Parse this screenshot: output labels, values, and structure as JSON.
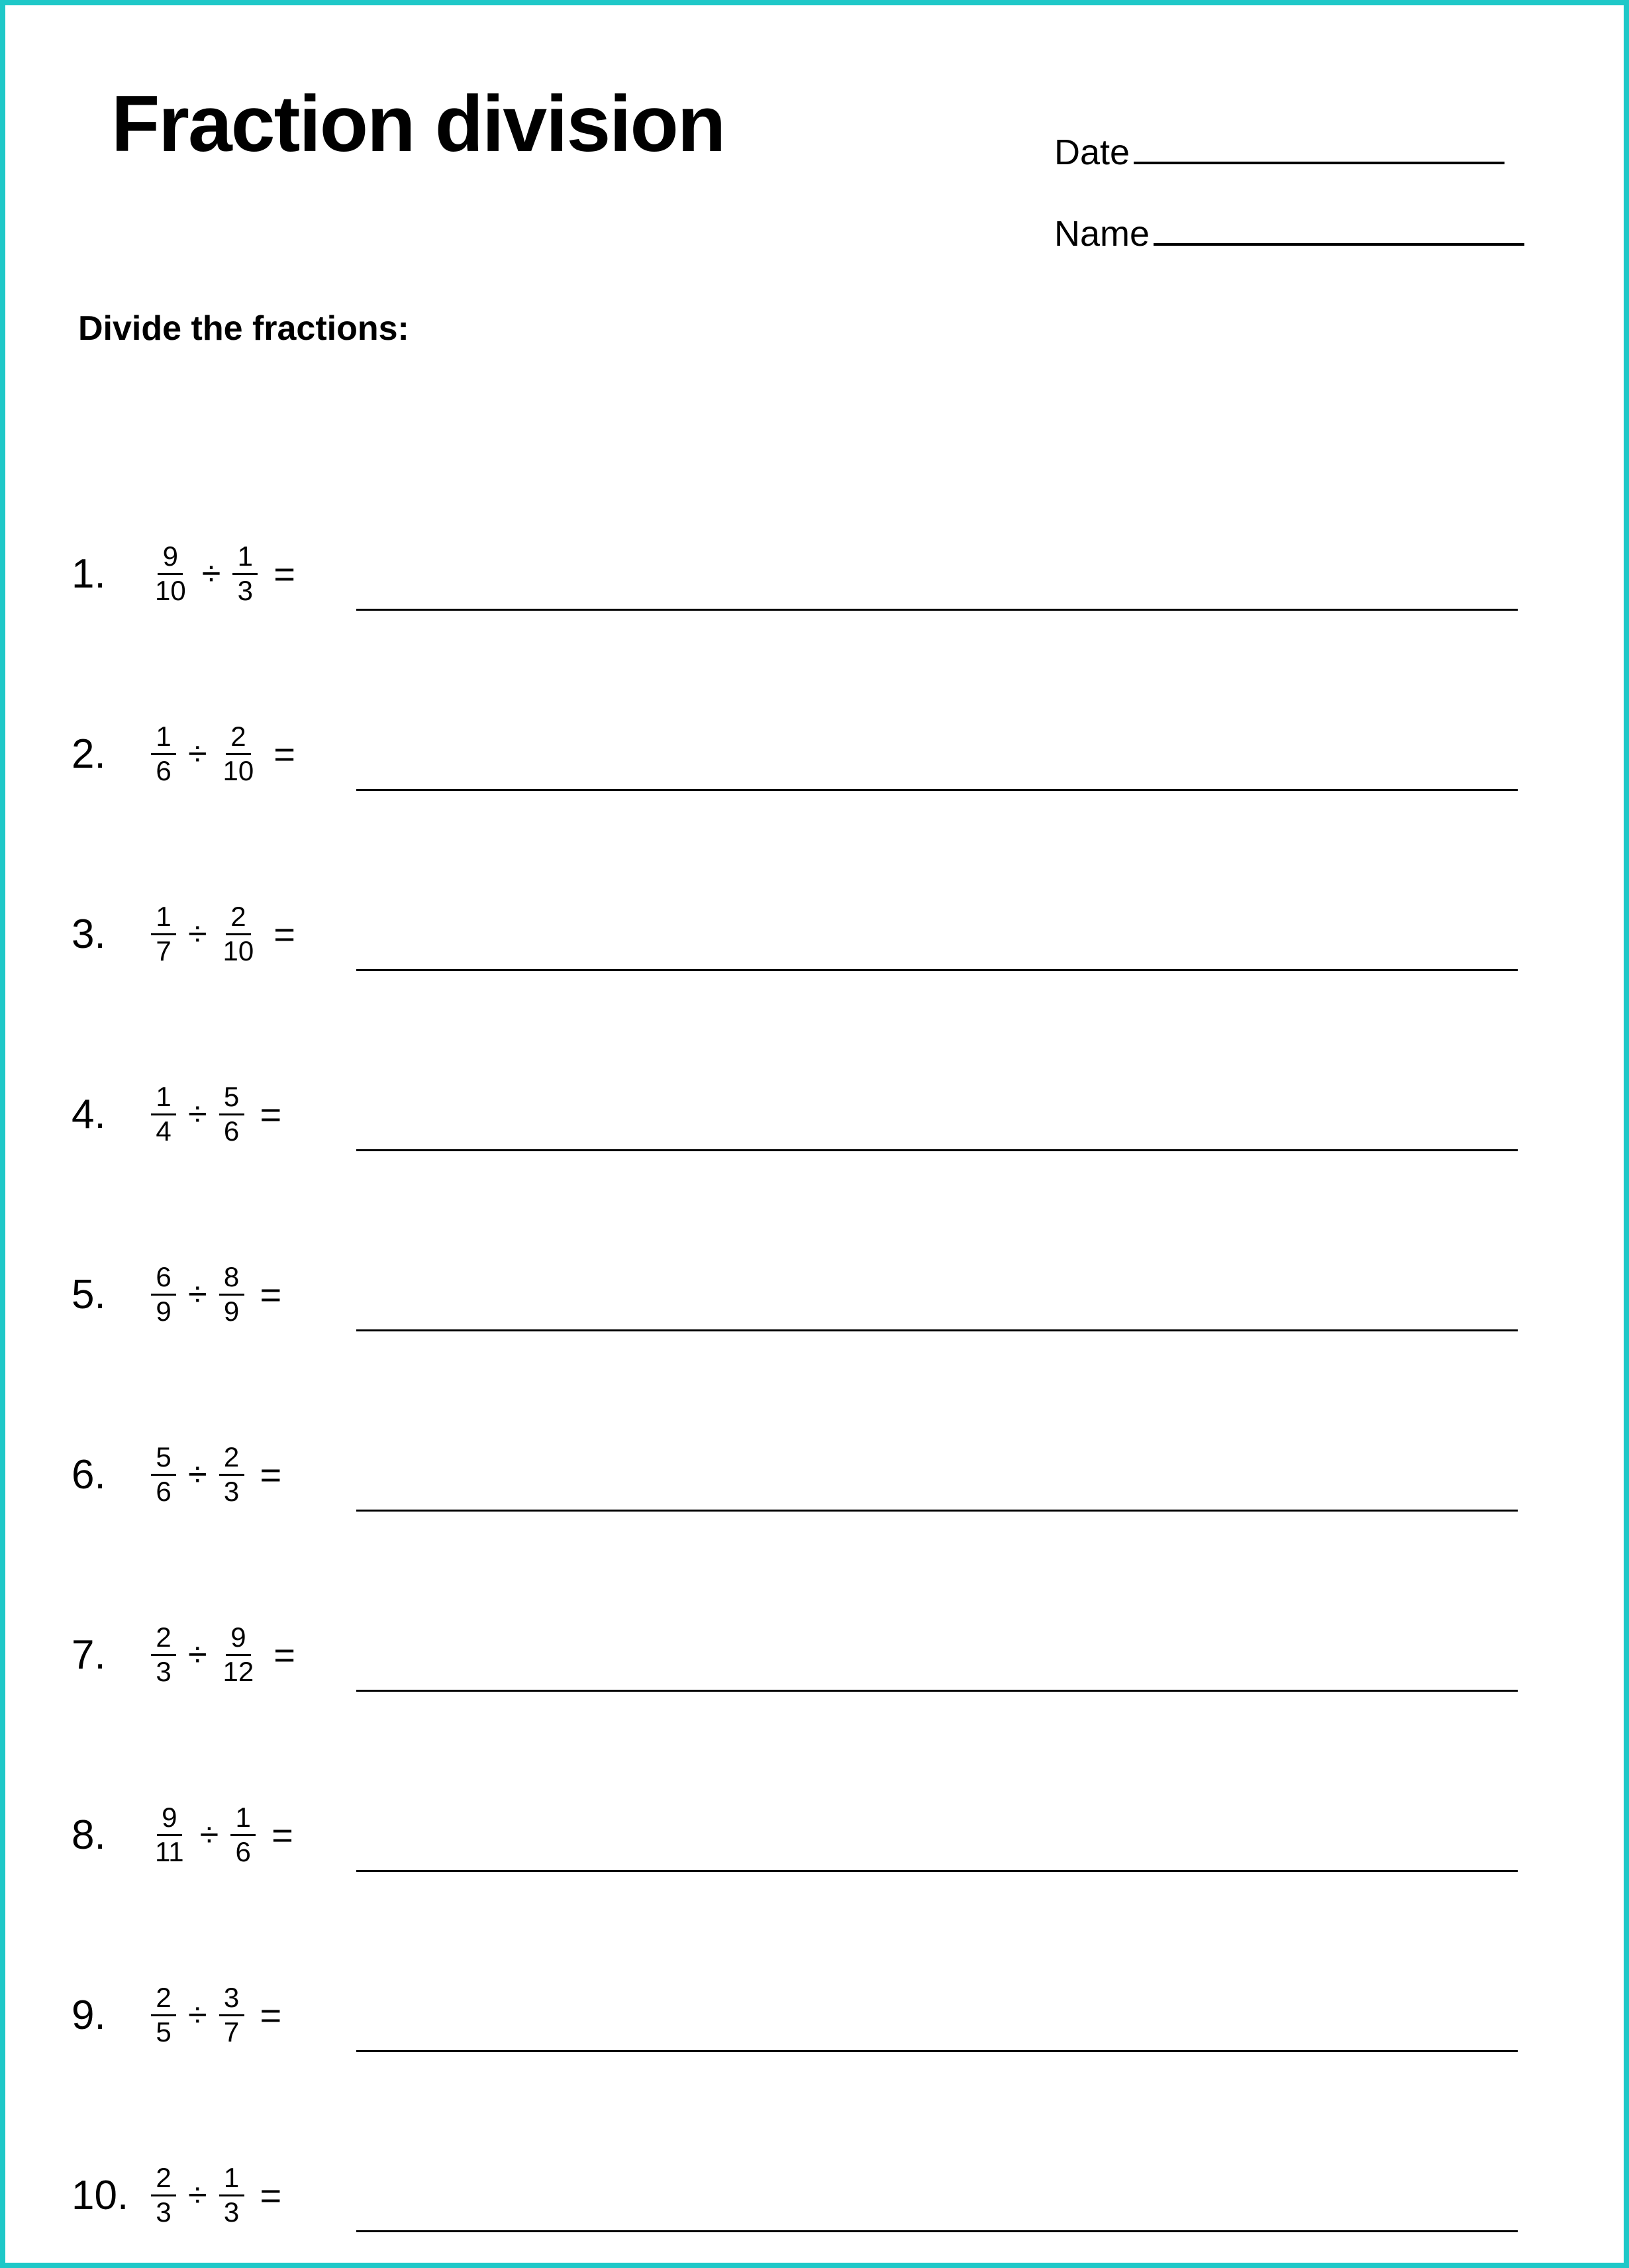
{
  "title": "Fraction division",
  "header": {
    "date_label": "Date",
    "name_label": "Name"
  },
  "instruction": "Divide the fractions:",
  "operator_symbol": "÷",
  "equals_symbol": "=",
  "colors": {
    "border": "#1ec8c8",
    "text": "#000000",
    "background": "#ffffff"
  },
  "problems": [
    {
      "n": "1.",
      "a_num": "9",
      "a_den": "10",
      "b_num": "1",
      "b_den": "3"
    },
    {
      "n": "2.",
      "a_num": "1",
      "a_den": "6",
      "b_num": "2",
      "b_den": "10"
    },
    {
      "n": "3.",
      "a_num": "1",
      "a_den": "7",
      "b_num": "2",
      "b_den": "10"
    },
    {
      "n": "4.",
      "a_num": "1",
      "a_den": "4",
      "b_num": "5",
      "b_den": "6"
    },
    {
      "n": "5.",
      "a_num": "6",
      "a_den": "9",
      "b_num": "8",
      "b_den": "9"
    },
    {
      "n": "6.",
      "a_num": "5",
      "a_den": "6",
      "b_num": "2",
      "b_den": "3"
    },
    {
      "n": "7.",
      "a_num": "2",
      "a_den": "3",
      "b_num": "9",
      "b_den": "12"
    },
    {
      "n": "8.",
      "a_num": "9",
      "a_den": "11",
      "b_num": "1",
      "b_den": "6"
    },
    {
      "n": "9.",
      "a_num": "2",
      "a_den": "5",
      "b_num": "3",
      "b_den": "7"
    },
    {
      "n": "10.",
      "a_num": "2",
      "a_den": "3",
      "b_num": "1",
      "b_den": "3"
    }
  ]
}
